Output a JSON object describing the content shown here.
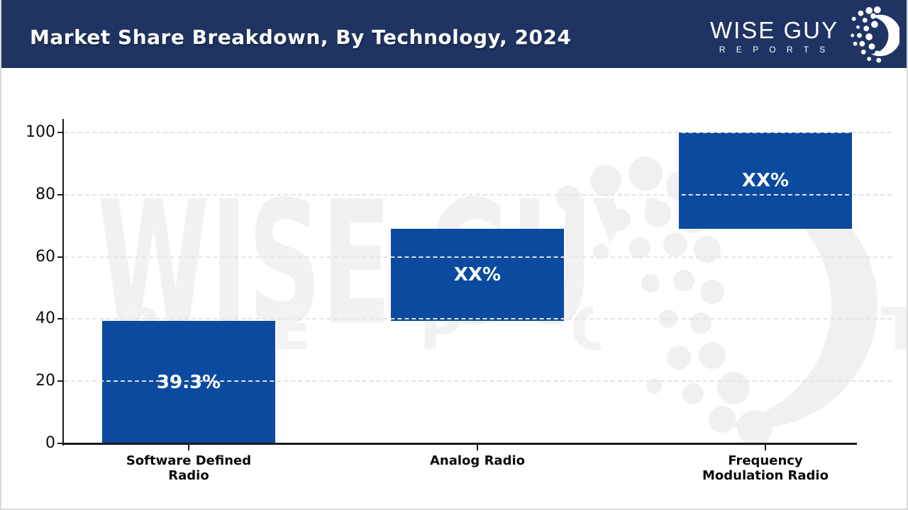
{
  "header": {
    "title": "Market Share Breakdown, By Technology, 2024",
    "logo": {
      "line1": "WISE GUY",
      "line2": "R E P O R T S"
    }
  },
  "watermark": {
    "line1": "WISE GUY",
    "line2": "R E P O R T S"
  },
  "chart_data": {
    "type": "bar",
    "subtype": "waterfall",
    "title": "Market Share Breakdown, By Technology, 2024",
    "categories": [
      "Software Defined\nRadio",
      "Analog Radio",
      "Frequency\nModulation Radio"
    ],
    "segments": [
      {
        "category": "Software Defined Radio",
        "start": 0,
        "end": 39.3,
        "label": "39.3%"
      },
      {
        "category": "Analog Radio",
        "start": 39.3,
        "end": 69,
        "label": "XX%"
      },
      {
        "category": "Frequency Modulation Radio",
        "start": 69,
        "end": 100,
        "label": "XX%"
      }
    ],
    "ylim": [
      0,
      100
    ],
    "yticks": [
      0,
      20,
      40,
      60,
      80,
      100
    ],
    "bar_color": "#0b4a9f",
    "grid": "horizontal-dashed",
    "legend": "none"
  },
  "colors": {
    "header_bg": "#1f3463",
    "bar": "#0b4a9f",
    "axis": "#1a1a1a",
    "grid": "#e4e4e4",
    "watermark": "#f1f1f1",
    "border": "#d9d9d9"
  }
}
